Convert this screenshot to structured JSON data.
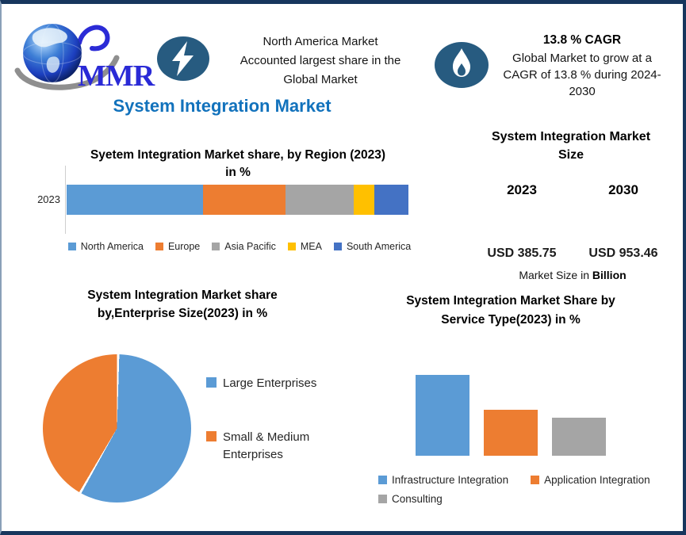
{
  "header": {
    "logo_text": "MMR",
    "highlight_lines": [
      "North America Market",
      "Accounted largest share in the",
      "Global Market"
    ],
    "cagr_title": "13.8 % CAGR",
    "cagr_lines": [
      "Global Market to grow at a",
      "CAGR of 13.8 % during 2024-",
      "2030"
    ],
    "main_title": "System Integration Market"
  },
  "market_size": {
    "title_lines": [
      "System Integration Market",
      "Size"
    ],
    "years": [
      "2023",
      "2030"
    ],
    "values": [
      "USD 385.75",
      "USD 953.46"
    ],
    "caption_prefix": "Market Size in ",
    "caption_bold": "Billion",
    "value_color": "#1f97d4"
  },
  "colors": {
    "accent_blue": "#1272bc",
    "badge_navy": "#275b80",
    "border_navy": "#17365d",
    "steel_blue": "#5B9BD5",
    "orange": "#ED7D31",
    "gray": "#A5A5A5",
    "yellow": "#FFC000",
    "royal_blue": "#4472C4"
  },
  "chart_data": [
    {
      "type": "bar",
      "variant": "stacked-horizontal",
      "title": "Syetem Integration Market share, by Region (2023) in %",
      "title_lines": [
        "Syetem Integration Market share, by Region (2023)",
        "in %"
      ],
      "categories": [
        "2023"
      ],
      "series": [
        {
          "name": "North America",
          "values": [
            40
          ],
          "color": "#5B9BD5"
        },
        {
          "name": "Europe",
          "values": [
            24
          ],
          "color": "#ED7D31"
        },
        {
          "name": "Asia Pacific",
          "values": [
            20
          ],
          "color": "#A5A5A5"
        },
        {
          "name": "MEA",
          "values": [
            6
          ],
          "color": "#FFC000"
        },
        {
          "name": "South America",
          "values": [
            10
          ],
          "color": "#4472C4"
        }
      ],
      "xlim": [
        0,
        100
      ],
      "grid": false,
      "legend_position": "bottom"
    },
    {
      "type": "pie",
      "title": "System Integration Market share by,Enterprise Size(2023) in %",
      "title_lines": [
        "System Integration Market share",
        "by,Enterprise Size(2023) in %"
      ],
      "slices": [
        {
          "label": "Large Enterprises",
          "value": 58,
          "color": "#5B9BD5"
        },
        {
          "label": "Small & Medium Enterprises",
          "value": 42,
          "color": "#ED7D31"
        }
      ],
      "start_angle_deg": 0,
      "legend_position": "right"
    },
    {
      "type": "bar",
      "variant": "vertical",
      "title": "System Integration Market Share by Service Type(2023) in %",
      "title_lines": [
        "System Integration Market Share by",
        "Service Type(2023) in %"
      ],
      "categories": [
        "Infrastructure Integration",
        "Application Integration",
        "Consulting"
      ],
      "values": [
        49,
        28,
        23
      ],
      "colors": [
        "#5B9BD5",
        "#ED7D31",
        "#A5A5A5"
      ],
      "ylim": [
        0,
        60
      ],
      "grid": false,
      "legend_position": "bottom"
    }
  ]
}
